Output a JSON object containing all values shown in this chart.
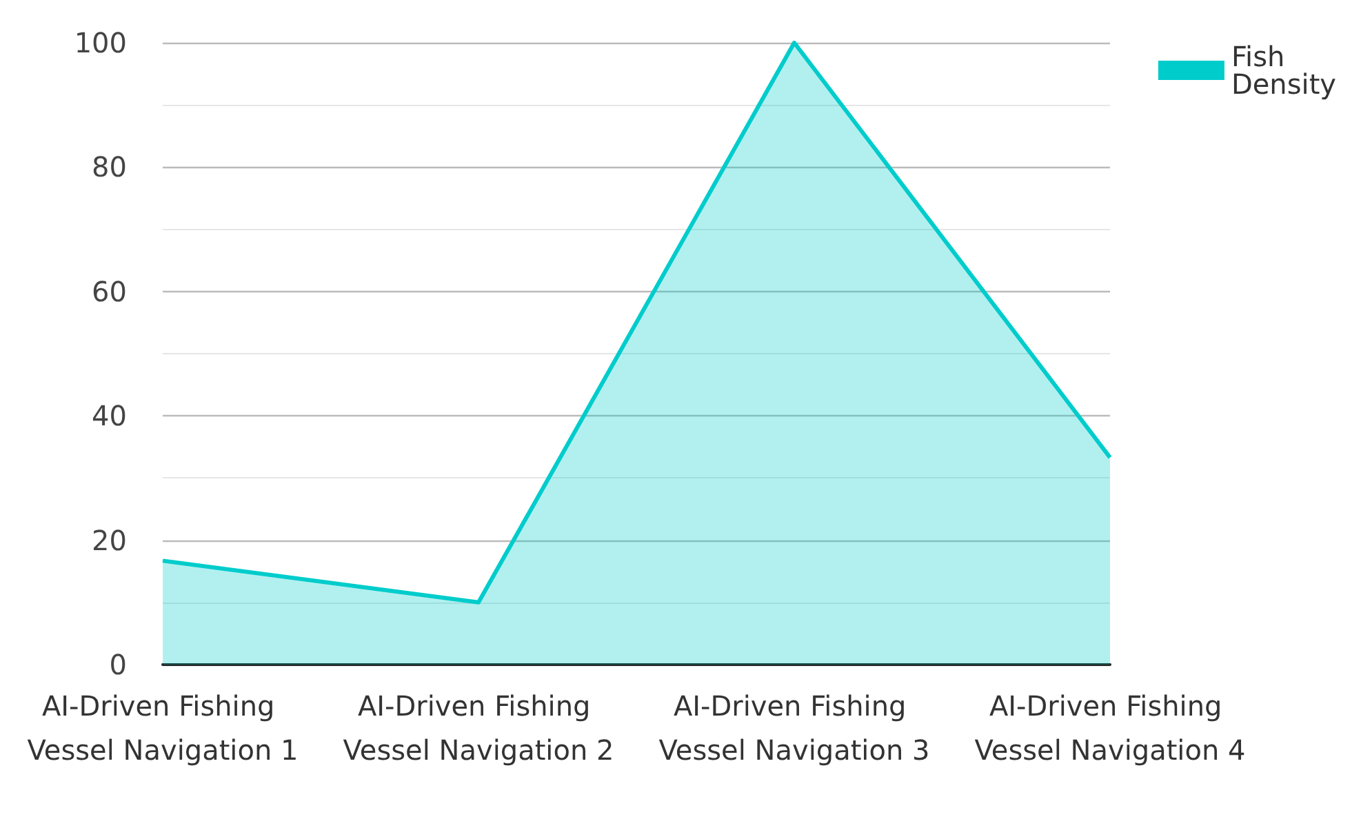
{
  "chart_data": {
    "type": "area",
    "categories": [
      "AI-Driven Fishing Vessel Navigation 1",
      "AI-Driven Fishing Vessel Navigation 2",
      "AI-Driven Fishing Vessel Navigation 3",
      "AI-Driven Fishing Vessel Navigation 4"
    ],
    "series": [
      {
        "name": "Fish Density",
        "color": "#00cccc",
        "values": [
          16.7,
          10,
          100,
          33.3
        ]
      }
    ],
    "ylim": [
      0,
      100
    ],
    "yticks": [
      0,
      {
        "value": 10,
        "label": null
      },
      20,
      {
        "value": 30,
        "label": null
      },
      40,
      {
        "value": 50,
        "label": null
      },
      60,
      {
        "value": 70,
        "label": null
      },
      80,
      {
        "value": 90,
        "label": null
      },
      100
    ],
    "grid": "y",
    "legend": "top right",
    "marker": "none"
  }
}
